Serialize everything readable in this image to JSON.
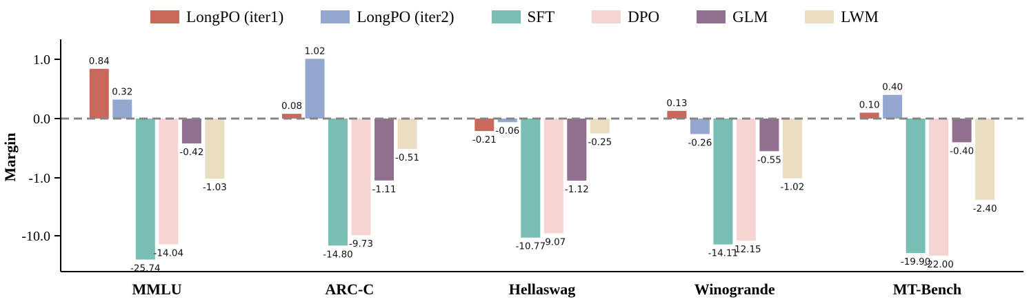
{
  "chart_data": {
    "type": "bar",
    "title": "",
    "xlabel": "",
    "ylabel": "Margin",
    "scale": "symlog",
    "grid": false,
    "legend_position": "top",
    "zero_line": true,
    "categories": [
      "MMLU",
      "ARC-C",
      "Hellaswag",
      "Winogrande",
      "MT-Bench"
    ],
    "yticks": [
      1.0,
      0.0,
      -1.0,
      -10.0
    ],
    "ytick_labels": [
      "1.0",
      "0.0",
      "-1.0",
      "-10.0"
    ],
    "series": [
      {
        "name": "LongPO (iter1)",
        "color": "#C9695C",
        "values": [
          0.84,
          0.08,
          -0.21,
          0.13,
          0.1
        ]
      },
      {
        "name": "LongPO (iter2)",
        "color": "#94A7CE",
        "values": [
          0.32,
          1.02,
          -0.06,
          -0.26,
          0.4
        ]
      },
      {
        "name": "SFT",
        "color": "#78BEB5",
        "values": [
          -25.74,
          -14.8,
          -10.77,
          -14.11,
          -19.9
        ]
      },
      {
        "name": "DPO",
        "color": "#F5D4D2",
        "values": [
          -14.04,
          -9.73,
          -9.07,
          -12.15,
          -22.0
        ]
      },
      {
        "name": "GLM",
        "color": "#90708E",
        "values": [
          -0.42,
          -1.11,
          -1.12,
          -0.55,
          -0.4
        ]
      },
      {
        "name": "LWM",
        "color": "#EADDC1",
        "values": [
          -1.03,
          -0.51,
          -0.25,
          -1.02,
          -2.4
        ]
      }
    ],
    "colors": {
      "axis": "#000000",
      "zero_line": "#858585",
      "value_label": "#111111"
    }
  }
}
